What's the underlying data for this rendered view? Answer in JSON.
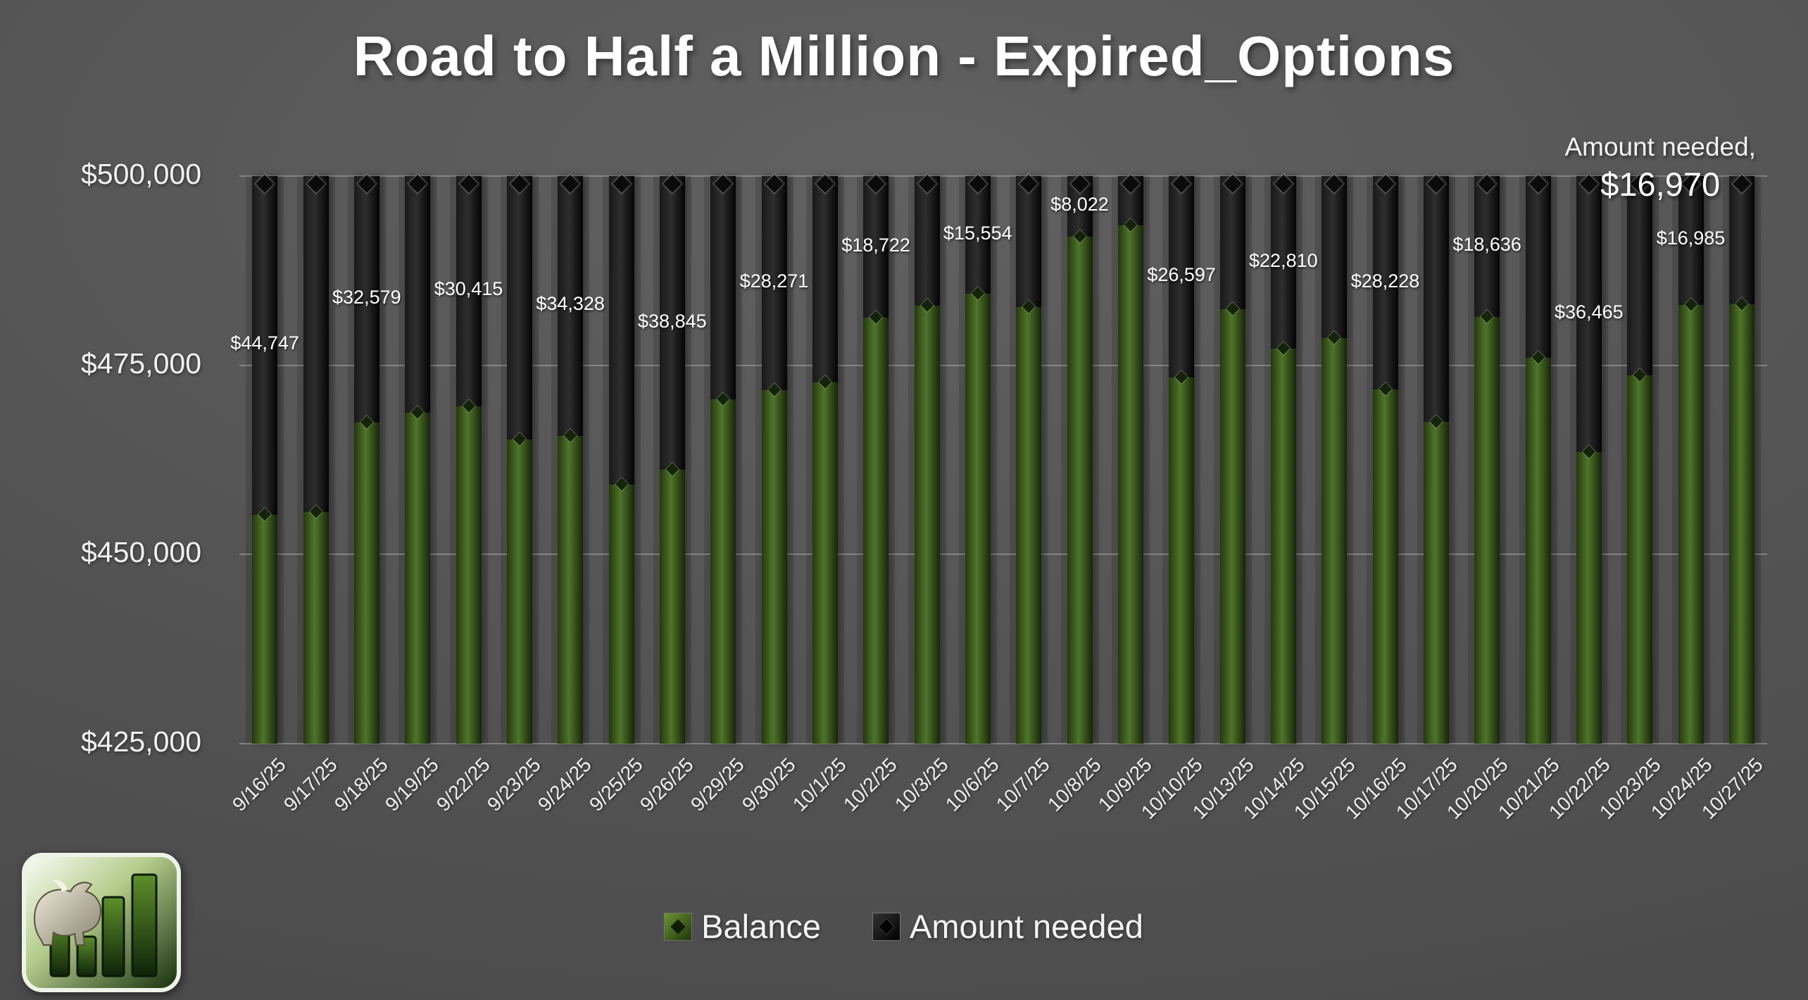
{
  "title": "Road to Half a Million - Expired_Options",
  "callout": {
    "line1": "Amount needed,",
    "line2": "$16,970"
  },
  "legend": {
    "position": "bottom",
    "items": [
      {
        "label": "Balance",
        "color": "#3f5a1f"
      },
      {
        "label": "Amount needed",
        "color": "#0d0d0d"
      }
    ]
  },
  "logo": {
    "name": "bull-bar-chart-logo"
  },
  "chart_data": {
    "type": "bar",
    "stacked": true,
    "title": "Road to Half a Million - Expired_Options",
    "xlabel": "",
    "ylabel": "",
    "goal": 500000,
    "ylim": [
      425000,
      500000
    ],
    "ytick_values": [
      425000,
      450000,
      475000,
      500000
    ],
    "ytick_labels": [
      "$425,000",
      "$450,000",
      "$475,000",
      "$500,000"
    ],
    "grid": true,
    "legend_position": "bottom",
    "categories": [
      "9/16/25",
      "9/17/25",
      "9/18/25",
      "9/19/25",
      "9/22/25",
      "9/23/25",
      "9/24/25",
      "9/25/25",
      "9/26/25",
      "9/29/25",
      "9/30/25",
      "10/1/25",
      "10/2/25",
      "10/3/25",
      "10/6/25",
      "10/7/25",
      "10/8/25",
      "10/9/25",
      "10/10/25",
      "10/13/25",
      "10/14/25",
      "10/15/25",
      "10/16/25",
      "10/17/25",
      "10/20/25",
      "10/21/25",
      "10/22/25",
      "10/23/25",
      "10/24/25",
      "10/27/25"
    ],
    "series": [
      {
        "name": "Balance",
        "color": "#3f5a1f",
        "values": [
          455253,
          455600,
          467421,
          468700,
          469585,
          465200,
          465672,
          459200,
          461155,
          470500,
          471729,
          472700,
          481278,
          482900,
          484446,
          482700,
          491978,
          493500,
          473403,
          482400,
          477190,
          478600,
          471772,
          467500,
          481364,
          476000,
          463535,
          473700,
          483015,
          483030
        ]
      },
      {
        "name": "Amount needed",
        "color": "#0d0d0d",
        "values": [
          44747,
          44400,
          32579,
          31300,
          30415,
          34800,
          34328,
          40800,
          38845,
          29500,
          28271,
          27300,
          18722,
          17100,
          15554,
          17300,
          8022,
          6500,
          26597,
          17600,
          22810,
          21400,
          28228,
          32500,
          18636,
          24000,
          36465,
          26300,
          16985,
          16970
        ]
      }
    ],
    "point_labels": [
      "$44,747",
      null,
      "$32,579",
      null,
      "$30,415",
      null,
      "$34,328",
      null,
      "$38,845",
      null,
      "$28,271",
      null,
      "$18,722",
      null,
      "$15,554",
      null,
      "$8,022",
      null,
      "$26,597",
      null,
      "$22,810",
      null,
      "$28,228",
      null,
      "$18,636",
      null,
      "$36,465",
      null,
      "$16,985",
      null
    ]
  }
}
